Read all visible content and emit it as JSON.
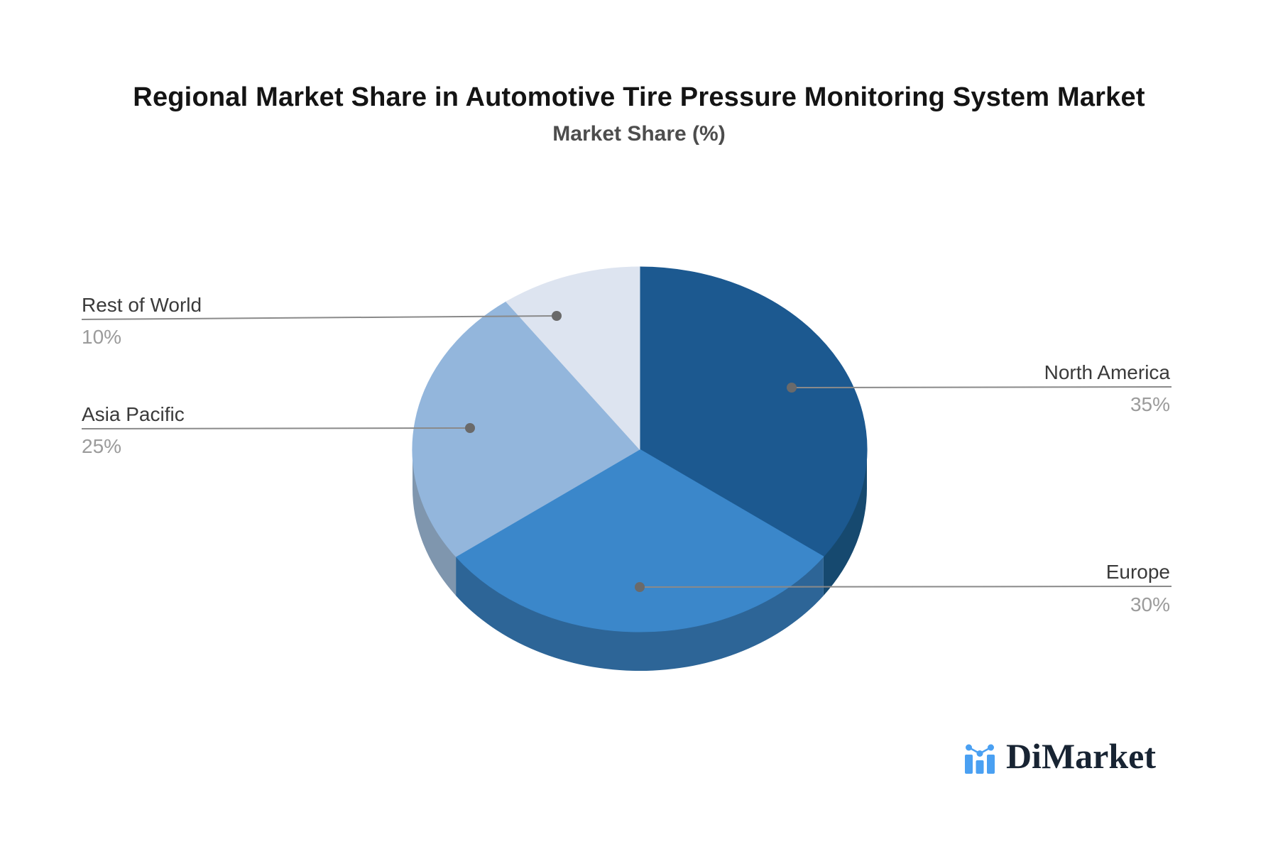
{
  "title": "Regional Market Share in Automotive Tire Pressure Monitoring System Market",
  "subtitle": "Market Share (%)",
  "brand": {
    "name": "DiMarket"
  },
  "labels": {
    "north_america": {
      "name": "North America",
      "value": "35%"
    },
    "europe": {
      "name": "Europe",
      "value": "30%"
    },
    "asia_pacific": {
      "name": "Asia Pacific",
      "value": "25%"
    },
    "rest_of_world": {
      "name": "Rest of World",
      "value": "10%"
    }
  },
  "colors": {
    "north_america": "#1c5990",
    "europe": "#3b87ca",
    "asia_pacific": "#93b6dc",
    "rest_of_world": "#dde4f0",
    "leader_line": "#8a8a8a",
    "leader_dot": "#6a6a6a",
    "title_text": "#141414",
    "subtitle_text": "#4d4d4d",
    "label_text": "#3a3a3a",
    "value_text": "#9b9b9b",
    "logo_text": "#182433",
    "logo_accent": "#4aa0f2",
    "background": "#ffffff"
  },
  "chart_data": {
    "type": "pie",
    "title": "Regional Market Share in Automotive Tire Pressure Monitoring System Market",
    "subtitle": "Market Share (%)",
    "unit": "%",
    "style": "3d-pie",
    "rotation": "clockwise-from-top",
    "legend_position": "none (callout labels with leader lines)",
    "slices": [
      {
        "label": "North America",
        "value": 35,
        "color": "#1c5990",
        "side_color": "#16496f"
      },
      {
        "label": "Europe",
        "value": 30,
        "color": "#3b87ca",
        "side_color": "#2d6597"
      },
      {
        "label": "Asia Pacific",
        "value": 25,
        "color": "#93b6dc",
        "side_color": "#7f96ae"
      },
      {
        "label": "Rest of World",
        "value": 10,
        "color": "#dde4f0",
        "side_color": "#b9c4d6"
      }
    ]
  }
}
